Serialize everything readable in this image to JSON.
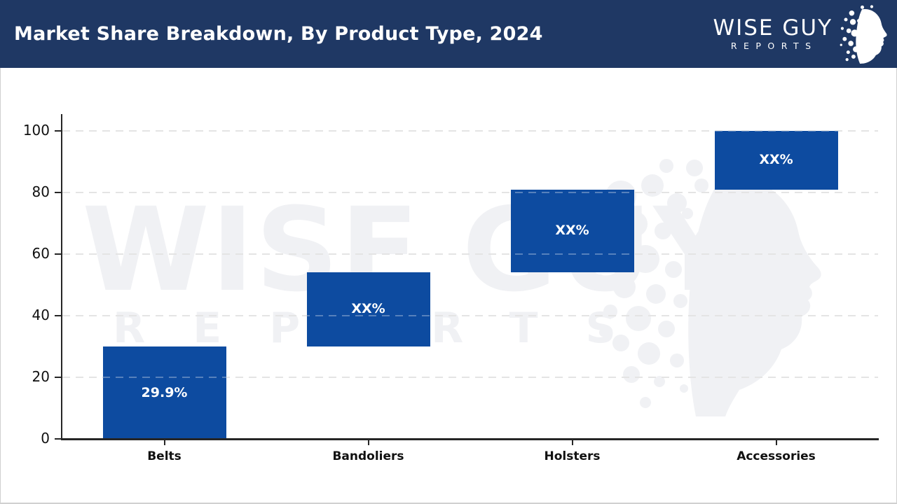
{
  "header": {
    "title": "Market Share Breakdown, By Product Type, 2024",
    "brand": {
      "name": "Wise Guy Reports",
      "line1": "WISE GUY",
      "line2": "REPORTS"
    }
  },
  "watermark": {
    "line1": "WISE GUY",
    "line2": "REPORTS"
  },
  "colors": {
    "header_bg": "#1f3864",
    "bar": "#0d4ba0",
    "bar_label": "#ffffff",
    "grid": "#d9d9d9",
    "grid_overlay": "rgba(255,255,255,0.30)",
    "axis": "#262626",
    "tick_label": "#111111",
    "watermark": "#f0f1f4",
    "border": "#d0d0d0",
    "page_bg": "#ffffff"
  },
  "chart_data": {
    "type": "bar",
    "subtype": "waterfall",
    "title": "Market Share Breakdown, By Product Type, 2024",
    "categories": [
      "Belts",
      "Bandoliers",
      "Holsters",
      "Accessories"
    ],
    "segments": [
      {
        "category": "Belts",
        "start": 0,
        "end": 29.9,
        "label": "29.9%"
      },
      {
        "category": "Bandoliers",
        "start": 29.9,
        "end": 54.2,
        "label": "XX%"
      },
      {
        "category": "Holsters",
        "start": 54.2,
        "end": 81.0,
        "label": "XX%"
      },
      {
        "category": "Accessories",
        "start": 81.0,
        "end": 100.0,
        "label": "XX%"
      }
    ],
    "yticks": [
      0,
      20,
      40,
      60,
      80,
      100
    ],
    "ylim": [
      0,
      105.5
    ],
    "xlabel": "",
    "ylabel": "",
    "grid": "horizontal-dashed",
    "legend": null
  }
}
